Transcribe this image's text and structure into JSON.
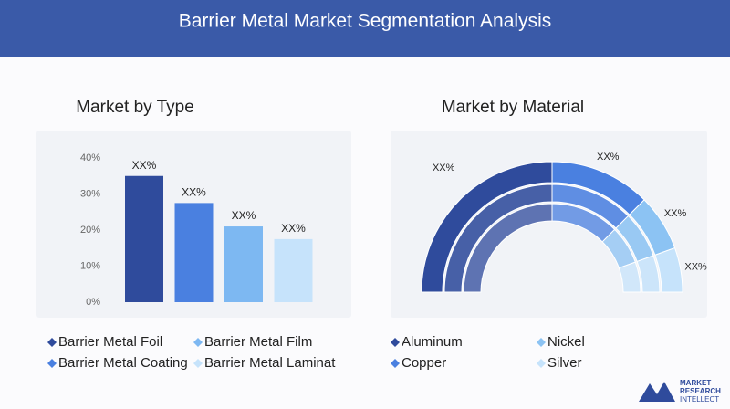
{
  "header": {
    "title": "Barrier Metal Market Segmentation Analysis"
  },
  "chart_data": [
    {
      "type": "bar",
      "title": "Market by Type",
      "categories": [
        "Barrier Metal Foil",
        "Barrier Metal Coating",
        "Barrier Metal Film",
        "Barrier Metal Laminat"
      ],
      "values": [
        35,
        27.5,
        21,
        17.5
      ],
      "value_labels": [
        "XX%",
        "XX%",
        "XX%",
        "XX%"
      ],
      "colors": [
        "#2f4b9c",
        "#4a80e0",
        "#7db8f2",
        "#c6e3fb"
      ],
      "ylim": [
        0,
        40
      ],
      "yticks": [
        {
          "value": 0,
          "label": "0%"
        },
        {
          "value": 10,
          "label": "10%"
        },
        {
          "value": 20,
          "label": "20%"
        },
        {
          "value": 30,
          "label": "30%"
        },
        {
          "value": 40,
          "label": "40%"
        }
      ]
    },
    {
      "type": "semi-donut",
      "title": "Market by Material",
      "categories": [
        "Aluminum",
        "Copper",
        "Nickel",
        "Silver"
      ],
      "values": [
        50,
        25,
        14,
        11
      ],
      "value_labels": [
        "XX%",
        "XX%",
        "XX%",
        "XX%"
      ],
      "colors": [
        "#2f4b9c",
        "#4a80e0",
        "#8cc3f3",
        "#c6e3fb"
      ]
    }
  ],
  "logo": {
    "line1": "MARKET",
    "line2": "RESEARCH",
    "line3": "INTELLECT"
  }
}
